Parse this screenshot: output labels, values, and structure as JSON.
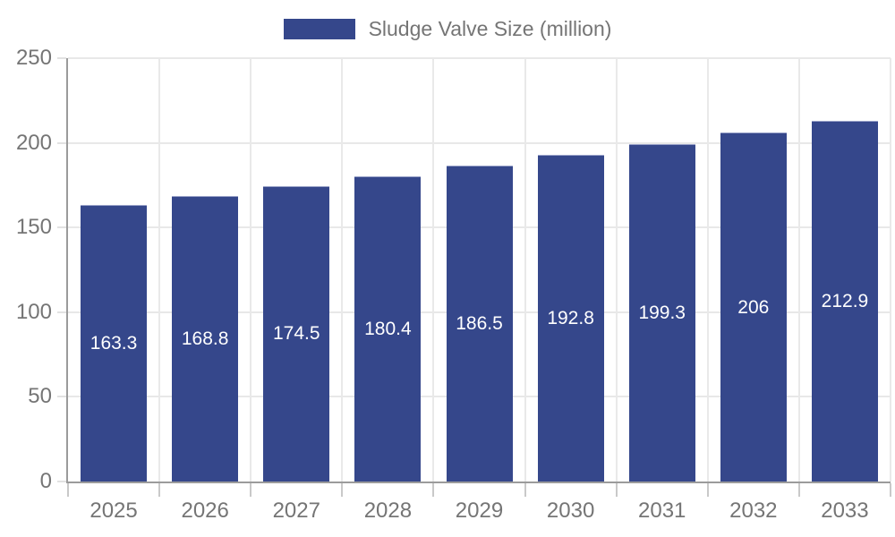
{
  "legend": {
    "label": "Sludge Valve Size (million)",
    "swatch_color": "#35478b"
  },
  "chart_data": {
    "type": "bar",
    "title": "Sludge Valve Size (million)",
    "series": [
      {
        "name": "Sludge Valve Size (million)",
        "values": [
          163.3,
          168.8,
          174.5,
          180.4,
          186.5,
          192.8,
          199.3,
          206,
          212.9
        ]
      }
    ],
    "categories": [
      "2025",
      "2026",
      "2027",
      "2028",
      "2029",
      "2030",
      "2031",
      "2032",
      "2033"
    ],
    "xlabel": "",
    "ylabel": "",
    "ylim": [
      0,
      250
    ],
    "yticks": [
      0,
      50,
      100,
      150,
      200,
      250
    ],
    "grid": true,
    "legend_position": "top-center",
    "bar_color": "#35478b",
    "value_label_color": "#ffffff",
    "axis_text_color": "#757575",
    "axis_line_color": "#9b9b9b",
    "gridline_color": "#e8e8e8"
  }
}
